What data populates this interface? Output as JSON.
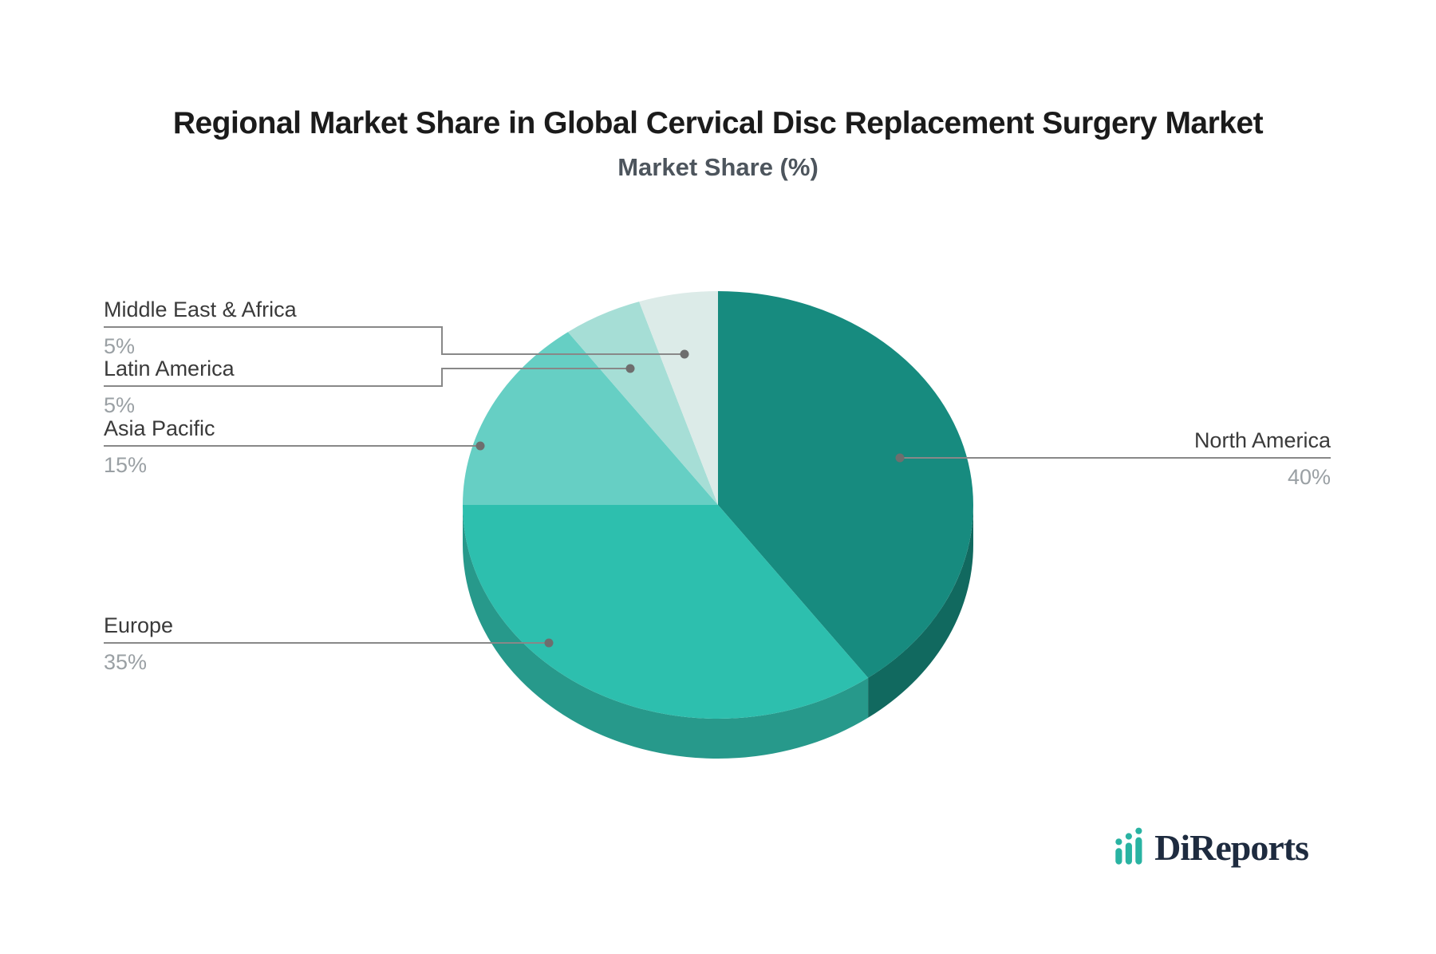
{
  "header": {
    "title": "Regional Market Share in Global Cervical Disc Replacement Surgery Market",
    "subtitle": "Market Share (%)"
  },
  "chart_data": {
    "type": "pie",
    "style": "3d-pie, starts at 12 o'clock, clockwise",
    "title": "Regional Market Share in Global Cervical Disc Replacement Surgery Market",
    "subtitle": "Market Share (%)",
    "unit": "%",
    "categories": [
      "North America",
      "Europe",
      "Asia Pacific",
      "Latin America",
      "Middle East & Africa"
    ],
    "values": [
      40,
      35,
      15,
      5,
      5
    ],
    "colors": [
      "#178b7f",
      "#2dbfae",
      "#66cfc4",
      "#a6ded6",
      "#dcebe8"
    ],
    "side_colors": [
      "#11695f",
      "#27998b",
      null,
      null,
      null
    ],
    "leader_line_color": "#888888",
    "legend_position": "callout-labels"
  },
  "slices": [
    {
      "name": "North America",
      "pct_text": "40%"
    },
    {
      "name": "Europe",
      "pct_text": "35%"
    },
    {
      "name": "Asia Pacific",
      "pct_text": "15%"
    },
    {
      "name": "Latin America",
      "pct_text": "5%"
    },
    {
      "name": "Middle East & Africa",
      "pct_text": "5%"
    }
  ],
  "branding": {
    "logo_text": "DiReports",
    "logo_icon": "ascending-bars-icon",
    "logo_teal": "#29b3a2",
    "logo_navy": "#1e2b3f"
  }
}
